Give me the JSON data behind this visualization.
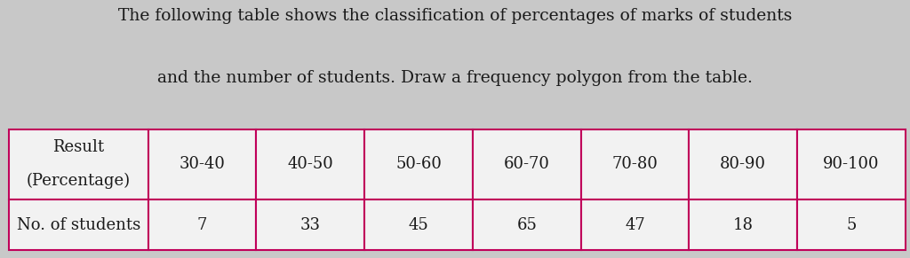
{
  "title_line1": "The following table shows the classification of percentages of marks of students",
  "title_line2": "and the number of students. Draw a frequency polygon from the table.",
  "col_header_1a": "Result",
  "col_header_1b": "(Percentage)",
  "col_headers": [
    "30-40",
    "40-50",
    "50-60",
    "60-70",
    "70-80",
    "80-90",
    "90-100"
  ],
  "row_label": "No. of students",
  "row_values": [
    "7",
    "33",
    "45",
    "65",
    "47",
    "18",
    "5"
  ],
  "table_bg": "#f2f2f2",
  "border_color": "#c0005a",
  "text_color": "#1a1a1a",
  "title_color": "#1a1a1a",
  "title_fontsize": 13.5,
  "table_fontsize": 13,
  "fig_bg": "#c8c8c8"
}
